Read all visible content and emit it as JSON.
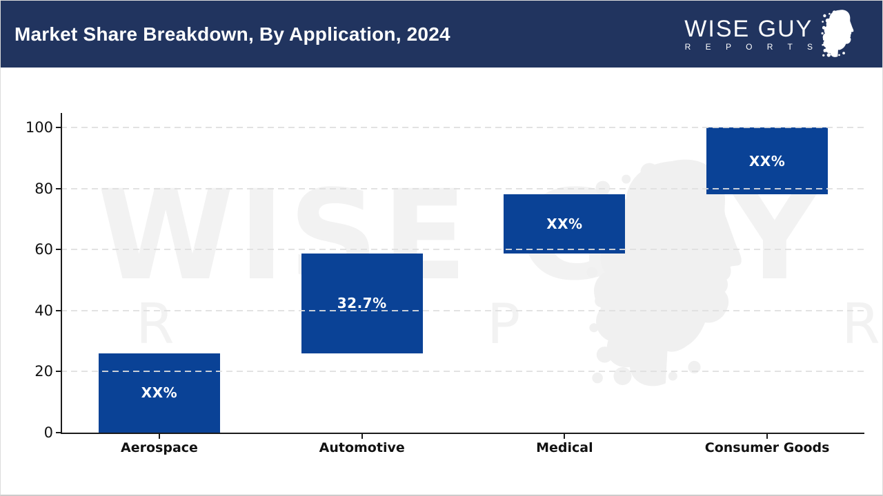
{
  "header": {
    "title": "Market Share Breakdown, By Application, 2024",
    "brand": {
      "line1": "WISE GUY",
      "line2": "R E P O R T S"
    }
  },
  "watermark": {
    "line1": "WISE GUY",
    "line2": "R E P O R T S"
  },
  "colors": {
    "header_bg": "#21345f",
    "bar": "#0a4296",
    "bar_label": "#ffffff",
    "grid": "#dfdfdf",
    "axis": "#1a1a1a",
    "tick_text": "#111111",
    "watermark": "#f2f2f2"
  },
  "chart_data": {
    "type": "bar",
    "subtype": "floating-waterfall",
    "title": "Market Share Breakdown, By Application, 2024",
    "categories": [
      "Aerospace",
      "Automotive",
      "Medical",
      "Consumer Goods"
    ],
    "bars": [
      {
        "category": "Aerospace",
        "start": 0,
        "end": 26,
        "value": 26,
        "value_label": "XX%"
      },
      {
        "category": "Automotive",
        "start": 26,
        "end": 58.7,
        "value": 32.7,
        "value_label": "32.7%"
      },
      {
        "category": "Medical",
        "start": 58.7,
        "end": 78,
        "value": 19.3,
        "value_label": "XX%"
      },
      {
        "category": "Consumer Goods",
        "start": 78,
        "end": 100,
        "value": 22,
        "value_label": "XX%"
      }
    ],
    "xlabel": "",
    "ylabel": "",
    "ylim": [
      0,
      105
    ],
    "yticks": [
      0,
      20,
      40,
      60,
      80,
      100
    ],
    "grid": "horizontal-dashed",
    "legend": "none",
    "bar_label_position": "center"
  }
}
